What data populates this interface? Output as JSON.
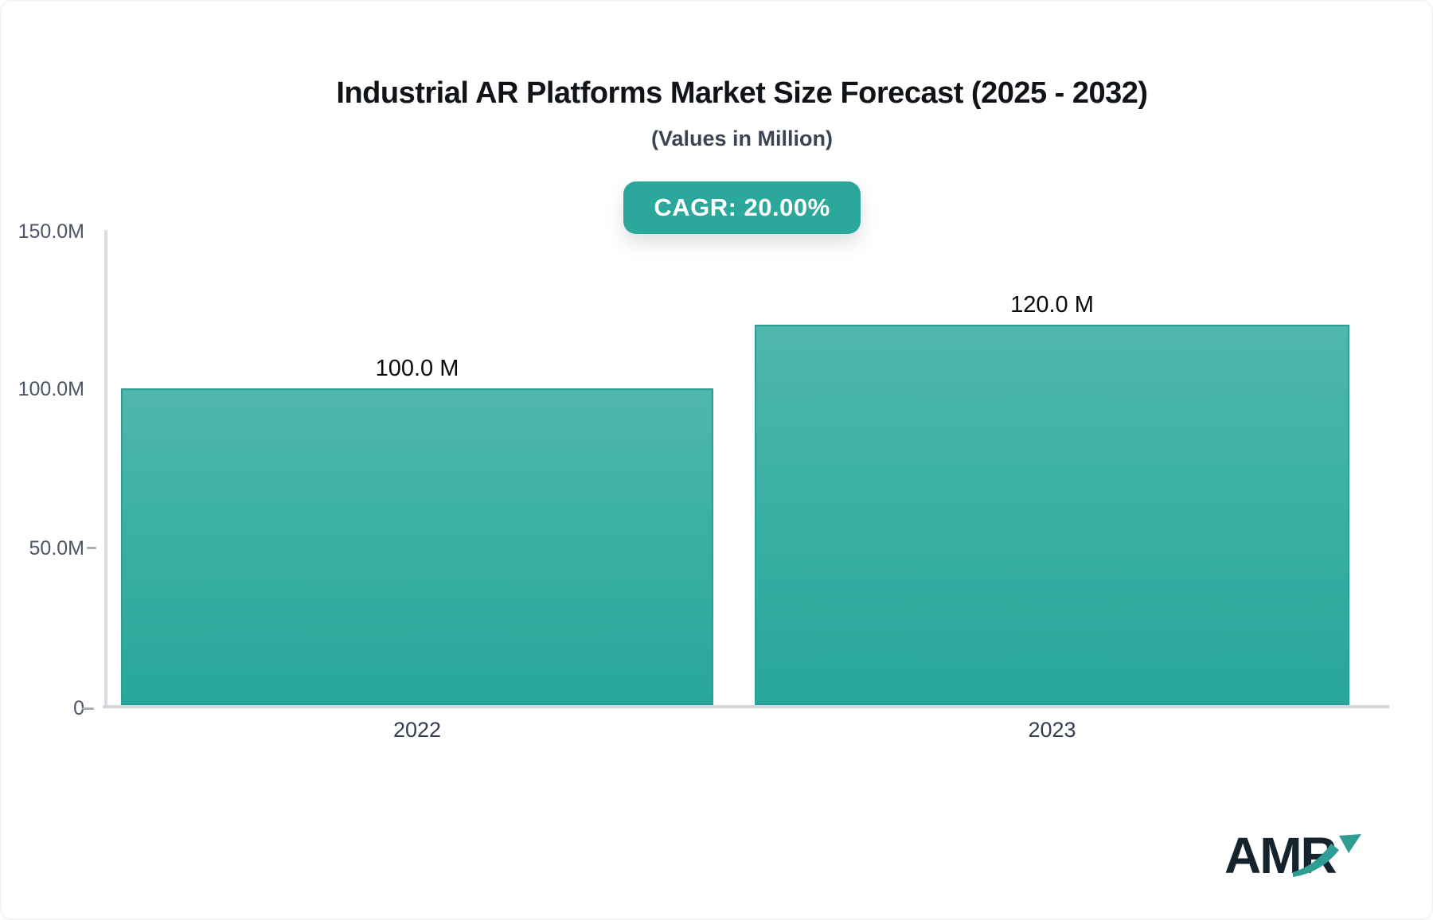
{
  "header": {
    "title": "Industrial AR Platforms Market Size Forecast (2025 - 2032)",
    "subtitle": "(Values in Million)",
    "cagr_badge": "CAGR: 20.00%",
    "badge_color": "#2BA89B"
  },
  "chart_data": {
    "type": "bar",
    "title": "Industrial AR Platforms Market Size Forecast (2025 - 2032)",
    "subtitle": "(Values in Million)",
    "unit": "Million",
    "cagr": "20.00%",
    "categories": [
      "2022",
      "2023"
    ],
    "values": [
      100.0,
      120.0
    ],
    "bar_labels": [
      "100.0 M",
      "120.0 M"
    ],
    "ylim": [
      0,
      150
    ],
    "yticks": [
      {
        "label": "150.0M",
        "value": 150,
        "dash": false
      },
      {
        "label": "100.0M",
        "value": 100,
        "dash": false
      },
      {
        "label": "50.0M",
        "value": 50,
        "dash": true
      },
      {
        "label": "0",
        "value": 0,
        "dash": true
      }
    ],
    "grid": false,
    "legend": false,
    "bar_color_top": "#4FB6AB",
    "bar_color_bottom": "#28A69A",
    "bar_border_color": "#2D9E95",
    "axis_color": "#D4D9DE",
    "tick_label_color": "#4C5566"
  },
  "footer": {
    "logo_text": "AMR"
  }
}
